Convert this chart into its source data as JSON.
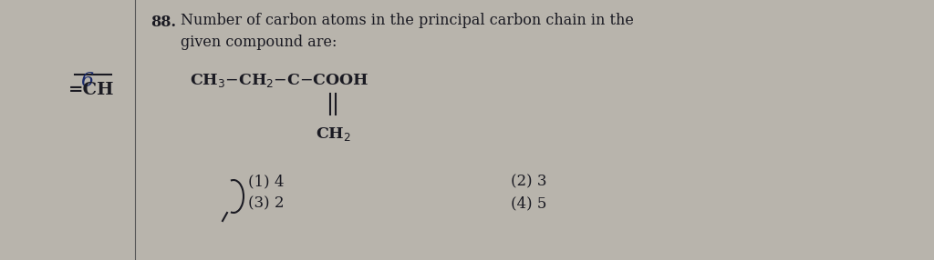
{
  "background_color": "#b8b4ac",
  "question_number": "88.",
  "question_text": "Number of carbon atoms in the principal carbon chain in the",
  "question_text2": "given compound are:",
  "left_number": "6",
  "left_label": "=CH",
  "opt1": "(1) 4",
  "opt3": "(3) 2",
  "opt2": "(2) 3",
  "opt4": "(4) 5",
  "text_color": "#1a1a22",
  "left_num_color": "#1a2a6a",
  "font_size_question": 11.5,
  "font_size_compound": 12.5,
  "font_size_options": 12,
  "font_size_left": 14
}
